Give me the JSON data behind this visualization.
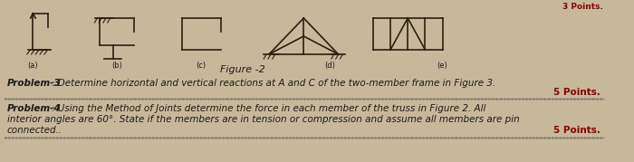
{
  "bg_color": "#c8b89a",
  "top_text": "3 Points.",
  "top_text_color": "#8b0000",
  "figure_label": "Figure -2",
  "figure_label_color": "#1a1a1a",
  "problem3_bold": "Problem-3",
  "problem3_text": ": Determine horizontal and vertical reactions at A and C of the two-member frame in Figure 3.",
  "problem3_points": "5 Points.",
  "problem3_points_color": "#8b0000",
  "dotted_line_color": "#555555",
  "problem4_bold": "Problem-4",
  "problem4_text": ": Using the Method of Joints determine the force in each member of the truss in Figure 2. All\ninterior angles are 60°. State if the members are in tension or compression and assume all members are pin\nconnected..",
  "problem4_points": "5 Points.",
  "problem4_points_color": "#8b0000",
  "sub_labels": [
    "(a)",
    "(b)",
    "(c)",
    "(d)",
    "(e)"
  ],
  "sub_label_color": "#1a1a1a"
}
